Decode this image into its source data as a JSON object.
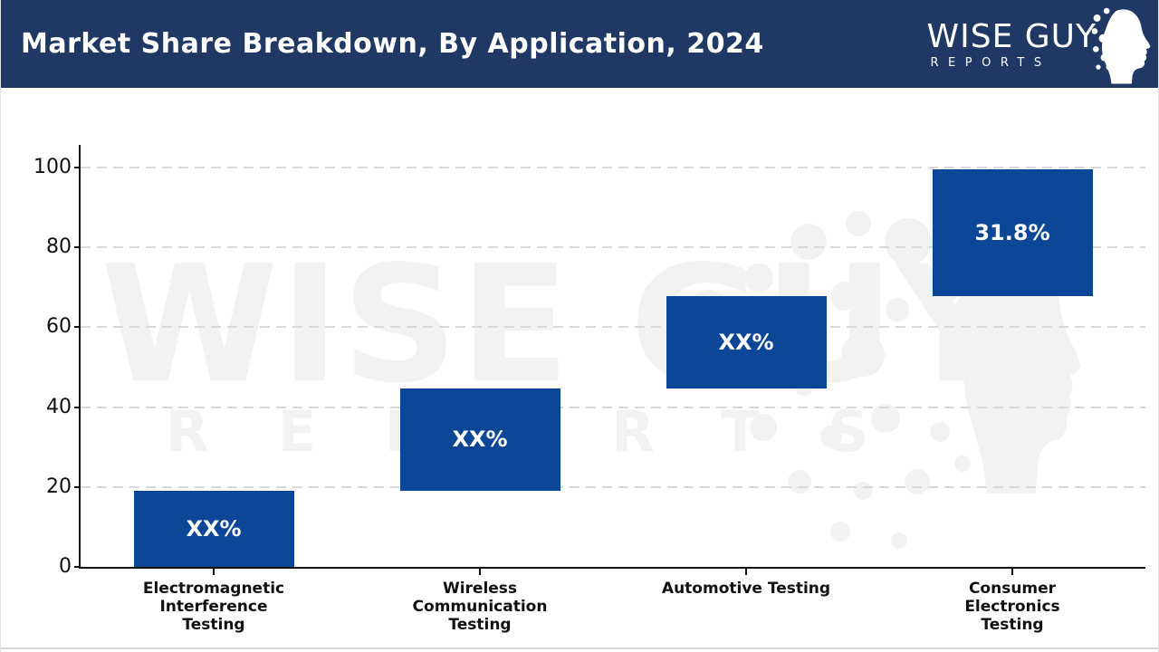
{
  "page": {
    "bg_color": "#ffffff",
    "border_color": "#d9d9d9"
  },
  "header": {
    "bg_color": "#203864",
    "title": "Market Share Breakdown, By Application, 2024",
    "logo_line1": "WISE GUY",
    "logo_line2": "REPORTS"
  },
  "watermark": {
    "big_text": "WISE GUY",
    "small_text": "REPORTS"
  },
  "chart_data": {
    "type": "bar",
    "subtype": "waterfall",
    "title": "Market Share Breakdown, By Application, 2024",
    "xlabel": "",
    "ylabel": "",
    "ylim": [
      0,
      105
    ],
    "yticks": [
      0,
      20,
      40,
      60,
      80,
      100
    ],
    "grid": "horizontal-dashed",
    "legend": "none",
    "bar_color": "#0b4697",
    "bar_label_color": "#ffffff",
    "axis_color": "#111111",
    "grid_color": "#d9d9d9",
    "categories": [
      "Electromagnetic Interference Testing",
      "Wireless Communication Testing",
      "Automotive Testing",
      "Consumer Electronics Testing"
    ],
    "segments": [
      {
        "category": "Electromagnetic Interference Testing",
        "label_lines": [
          "Electromagnetic",
          "Interference",
          "Testing"
        ],
        "start": 0,
        "end": 19.1,
        "value": 19.1,
        "bar_label": "XX%"
      },
      {
        "category": "Wireless Communication Testing",
        "label_lines": [
          "Wireless",
          "Communication",
          "Testing"
        ],
        "start": 19.1,
        "end": 44.7,
        "value": 25.6,
        "bar_label": "XX%"
      },
      {
        "category": "Automotive Testing",
        "label_lines": [
          "Automotive Testing"
        ],
        "start": 44.7,
        "end": 67.8,
        "value": 23.1,
        "bar_label": "XX%"
      },
      {
        "category": "Consumer Electronics Testing",
        "label_lines": [
          "Consumer",
          "Electronics",
          "Testing"
        ],
        "start": 67.8,
        "end": 99.6,
        "value": 31.8,
        "bar_label": "31.8%"
      }
    ]
  }
}
